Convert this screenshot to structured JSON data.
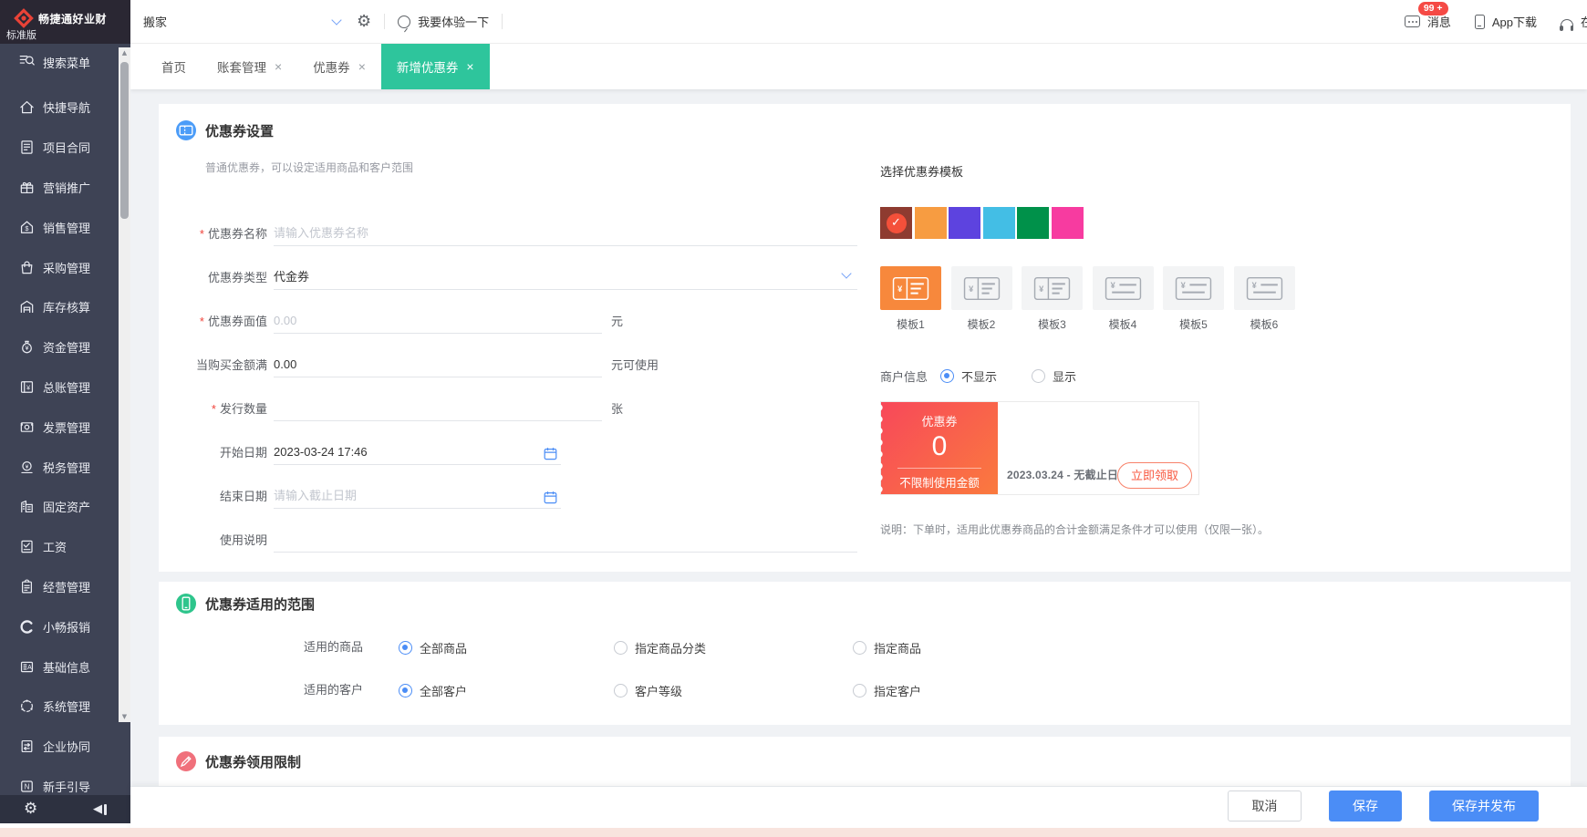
{
  "brand": {
    "name": "畅捷通好业财",
    "edition": "标准版"
  },
  "topbar": {
    "workspace": "搬家",
    "experience": "我要体验一下",
    "messages": {
      "label": "消息",
      "badge": "99 +"
    },
    "app_download": "App下载",
    "service": "在",
    "icons": {
      "gear": "⚙"
    }
  },
  "tabs": {
    "items": [
      {
        "label": "首页",
        "closable": false,
        "active": false
      },
      {
        "label": "账套管理",
        "closable": true,
        "active": false
      },
      {
        "label": "优惠券",
        "closable": true,
        "active": false
      },
      {
        "label": "新增优惠券",
        "closable": true,
        "active": true
      }
    ]
  },
  "sidebar": {
    "search": "搜索菜单",
    "gear": "⚙",
    "collapse_tri": "◀",
    "scroll_up": "▲",
    "scroll_down": "▼",
    "items": [
      {
        "icon": "home",
        "label": "快捷导航"
      },
      {
        "icon": "contract",
        "label": "项目合同"
      },
      {
        "icon": "gift",
        "label": "营销推广"
      },
      {
        "icon": "sell",
        "label": "销售管理"
      },
      {
        "icon": "purchase",
        "label": "采购管理"
      },
      {
        "icon": "inventory",
        "label": "库存核算"
      },
      {
        "icon": "funds",
        "label": "资金管理"
      },
      {
        "icon": "ledger",
        "label": "总账管理"
      },
      {
        "icon": "invoice",
        "label": "发票管理"
      },
      {
        "icon": "tax",
        "label": "税务管理"
      },
      {
        "icon": "asset",
        "label": "固定资产"
      },
      {
        "icon": "payroll",
        "label": "工资"
      },
      {
        "icon": "biz",
        "label": "经营管理"
      },
      {
        "icon": "clogo",
        "label": "小畅报销"
      },
      {
        "icon": "info",
        "label": "基础信息"
      },
      {
        "icon": "system",
        "label": "系统管理"
      },
      {
        "icon": "collab",
        "label": "企业协同"
      },
      {
        "icon": "newbie",
        "label": "新手引导"
      }
    ]
  },
  "coupon_form": {
    "section_title": "优惠券设置",
    "subtitle": "普通优惠券，可以设定适用商品和客户范围",
    "fields": [
      {
        "name": "coupon-name",
        "label": "优惠券名称",
        "required": true,
        "value": "",
        "placeholder": "请输入优惠券名称",
        "width": "long",
        "suffix": "",
        "unit": ""
      },
      {
        "name": "coupon-type",
        "label": "优惠券类型",
        "required": false,
        "value": "代金券",
        "placeholder": "",
        "width": "long",
        "suffix": "chevron",
        "unit": ""
      },
      {
        "name": "face-value",
        "label": "优惠券面值",
        "required": true,
        "value": "",
        "placeholder": "0.00",
        "width": "short",
        "suffix": "",
        "unit": "元"
      },
      {
        "name": "min-amount",
        "label": "当购买金额满",
        "required": false,
        "value": "0.00",
        "placeholder": "",
        "width": "short",
        "suffix": "",
        "unit": "元可使用"
      },
      {
        "name": "issue-count",
        "label": "发行数量",
        "required": true,
        "value": "",
        "placeholder": "",
        "width": "short",
        "suffix": "",
        "unit": "张"
      },
      {
        "name": "start-date",
        "label": "开始日期",
        "required": false,
        "value": "2023-03-24 17:46",
        "placeholder": "",
        "width": "date",
        "suffix": "calendar",
        "unit": ""
      },
      {
        "name": "end-date",
        "label": "结束日期",
        "required": false,
        "value": "",
        "placeholder": "请输入截止日期",
        "width": "date",
        "suffix": "calendar",
        "unit": ""
      },
      {
        "name": "usage-note",
        "label": "使用说明",
        "required": false,
        "value": "",
        "placeholder": "",
        "width": "long",
        "suffix": "",
        "unit": ""
      }
    ]
  },
  "template_picker": {
    "title": "选择优惠券模板",
    "colors": [
      "#8E3B30",
      "#F79C41",
      "#5D43DF",
      "#43BEE5",
      "#00914A",
      "#F73BA0"
    ],
    "selected_color": 0,
    "check_mark": "✓",
    "templates": [
      "模板1",
      "模板2",
      "模板3",
      "模板4",
      "模板5",
      "模板6"
    ],
    "selected_template": 0,
    "merchant": {
      "label": "商户信息",
      "options": [
        "不显示",
        "显示"
      ],
      "selected": 0
    }
  },
  "coupon_preview": {
    "tag": "优惠券",
    "amount": "0",
    "limit": "不限制使用金额",
    "validity": "2023.03.24 - 无截止日期",
    "claim": "立即领取",
    "note": "说明：下单时，适用此优惠券商品的合计金额满足条件才可以使用（仅限一张）。"
  },
  "scope_section": {
    "title": "优惠券适用的范围",
    "rows": [
      {
        "name": "products-scope",
        "label": "适用的商品",
        "options": [
          "全部商品",
          "指定商品分类",
          "指定商品"
        ],
        "selected": 0
      },
      {
        "name": "customers-scope",
        "label": "适用的客户",
        "options": [
          "全部客户",
          "客户等级",
          "指定客户"
        ],
        "selected": 0
      }
    ]
  },
  "limit_section": {
    "title": "优惠券领用限制"
  },
  "footer": {
    "cancel": "取消",
    "save": "保存",
    "save_publish": "保存并发布"
  },
  "colors": {
    "accent_green": "#2EC59C",
    "accent_blue": "#4B8DF6",
    "coupon_red": "#F8485A",
    "coupon_orange": "#FA7A3E",
    "badge_red": "#F54A45"
  }
}
